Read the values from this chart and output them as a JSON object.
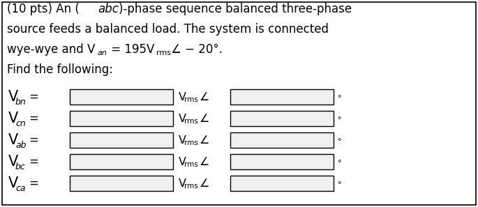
{
  "bg_color": "#ffffff",
  "border_color": "#000000",
  "text_color": "#000000",
  "box_fill": "#f0f0f0",
  "fig_width": 6.85,
  "fig_height": 2.97,
  "dpi": 100,
  "header_lines": [
    {
      "type": "mixed",
      "parts": [
        {
          "text": "(10 pts) An (",
          "style": "normal"
        },
        {
          "text": "abc",
          "style": "italic"
        },
        {
          "text": ")-phase sequence balanced three-phase",
          "style": "normal"
        }
      ]
    },
    {
      "type": "plain",
      "text": "source feeds a balanced load. The system is connected"
    },
    {
      "type": "mixed",
      "parts": [
        {
          "text": "wye-wye and V",
          "style": "normal"
        },
        {
          "text": "an",
          "style": "subscript_italic"
        },
        {
          "text": " = 195V",
          "style": "normal"
        },
        {
          "text": "rms",
          "style": "subscript"
        },
        {
          "text": "∠ − 20°.",
          "style": "normal"
        }
      ]
    },
    {
      "type": "plain",
      "text": "Find the following:"
    }
  ],
  "rows": [
    [
      "V",
      "bn"
    ],
    [
      "V",
      "cn"
    ],
    [
      "V",
      "ab"
    ],
    [
      "V",
      "bc"
    ],
    [
      "V",
      "ca"
    ]
  ],
  "font_size": 12,
  "sub_font_size": 8,
  "row_label_V_size": 15,
  "row_label_sub_size": 9,
  "row_eq_size": 12
}
